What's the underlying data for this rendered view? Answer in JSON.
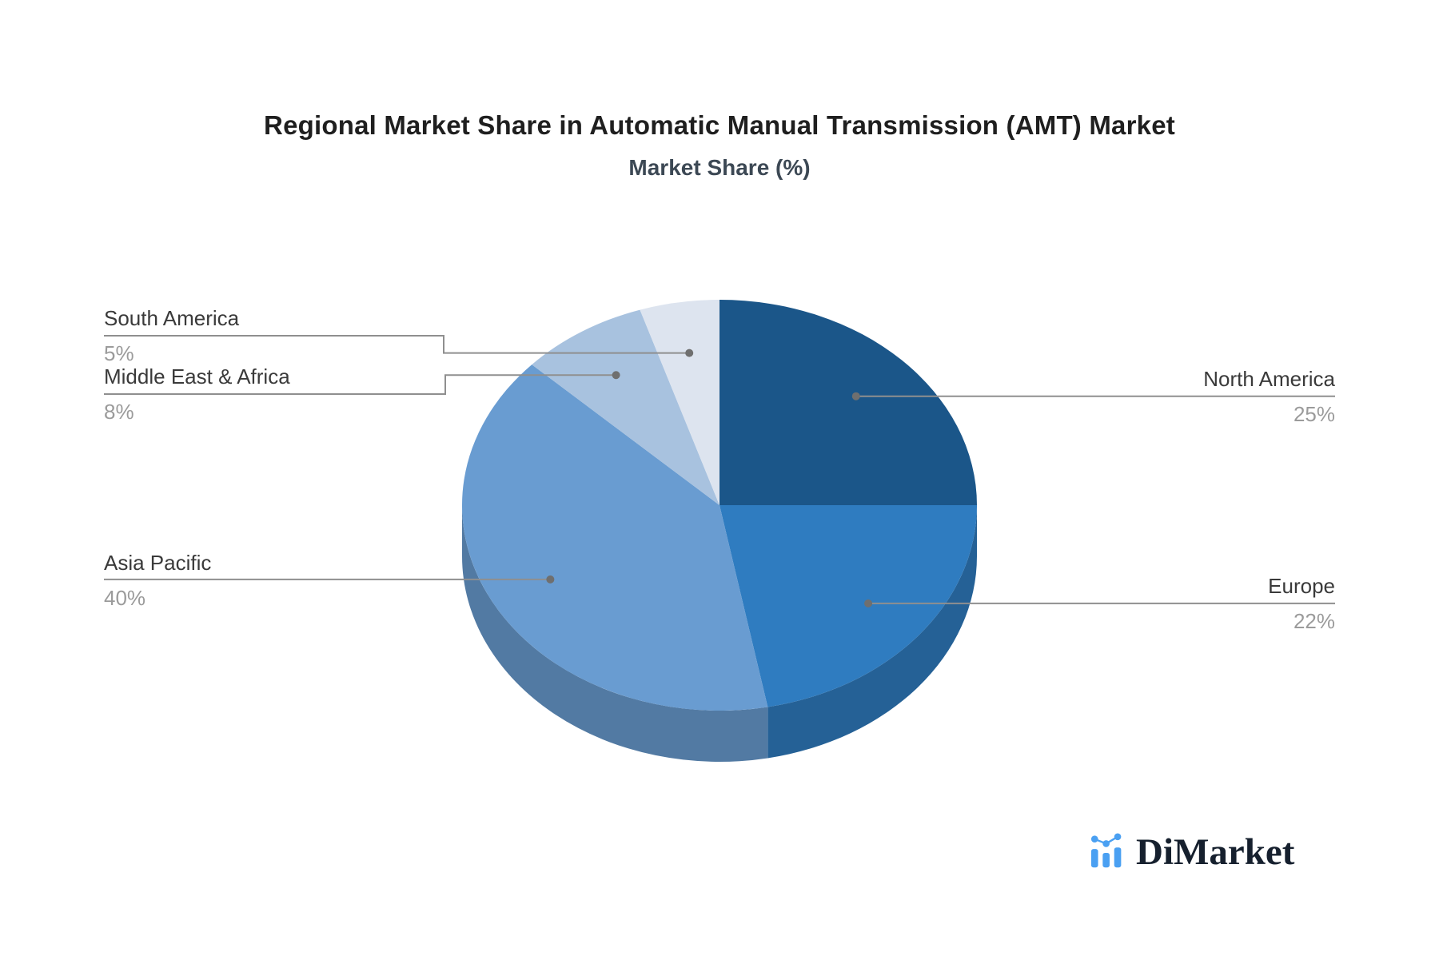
{
  "chart_data": {
    "type": "pie",
    "style": "3d",
    "title": "Regional Market Share in Automatic Manual Transmission (AMT) Market",
    "subtitle": "Market Share (%)",
    "unit": "%",
    "start_angle": "12-oclock-clockwise",
    "slices": [
      {
        "label": "North America",
        "value": 25,
        "color": "#1B5689"
      },
      {
        "label": "Europe",
        "value": 22,
        "color": "#2F7CC0"
      },
      {
        "label": "Asia Pacific",
        "value": 40,
        "color": "#699CD1"
      },
      {
        "label": "Middle East & Africa",
        "value": 8,
        "color": "#A8C2DF"
      },
      {
        "label": "South America",
        "value": 5,
        "color": "#DDE4EF"
      }
    ],
    "legend": "callout-labels",
    "leader_line_color": "#8F8F8F",
    "leader_dot_color": "#6F6F6F",
    "label_color": "#3A3A3A",
    "percent_color": "#9B9B9B"
  },
  "branding": {
    "logo_text": "DiMarket",
    "logo_text_color": "#16202E",
    "logo_accent_color": "#4AA0F2"
  }
}
